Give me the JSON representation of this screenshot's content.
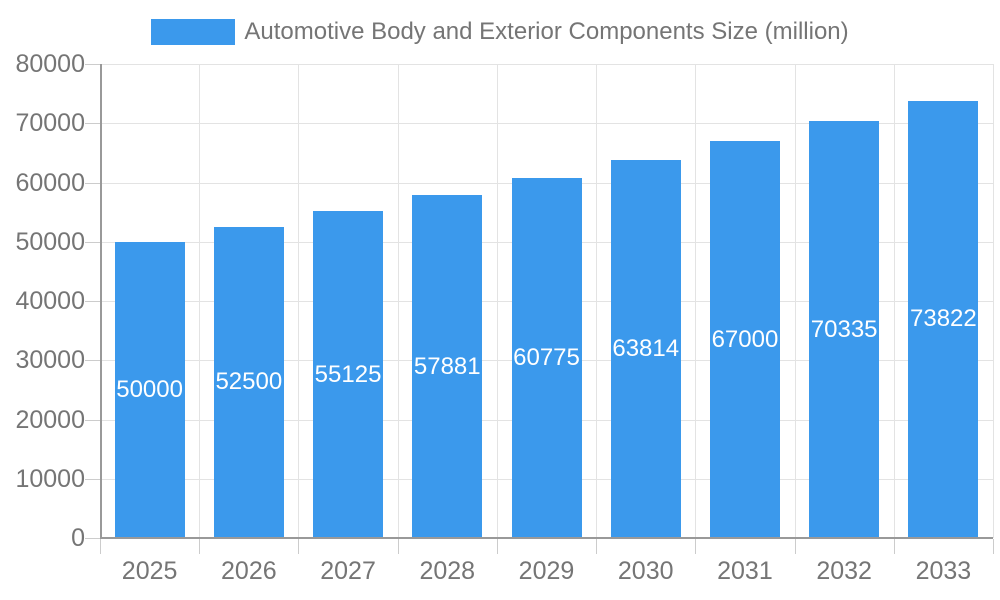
{
  "legend": {
    "swatch_color": "#3B99EC",
    "label": "Automotive Body and Exterior Components Size (million)"
  },
  "chart_data": {
    "type": "bar",
    "title": "Automotive Body and Exterior Components Size (million)",
    "categories": [
      "2025",
      "2026",
      "2027",
      "2028",
      "2029",
      "2030",
      "2031",
      "2032",
      "2033"
    ],
    "values": [
      50000,
      52500,
      55125,
      57881,
      60775,
      63814,
      67000,
      70335,
      73822
    ],
    "xlabel": "",
    "ylabel": "",
    "ylim": [
      0,
      80000
    ],
    "yticks": [
      0,
      10000,
      20000,
      30000,
      40000,
      50000,
      60000,
      70000,
      80000
    ],
    "grid": true,
    "legend_position": "top-center",
    "value_label_placement": "inside-center"
  },
  "colors": {
    "bar": "#3B99EC",
    "grid_line": "#E3E3E3",
    "tick_line": "#CCCCCC",
    "axis_line": "#999999",
    "axis_label_text": "#757575",
    "title_text": "#757575",
    "value_label_text": "#FFFFFF",
    "background": "#FFFFFF"
  }
}
